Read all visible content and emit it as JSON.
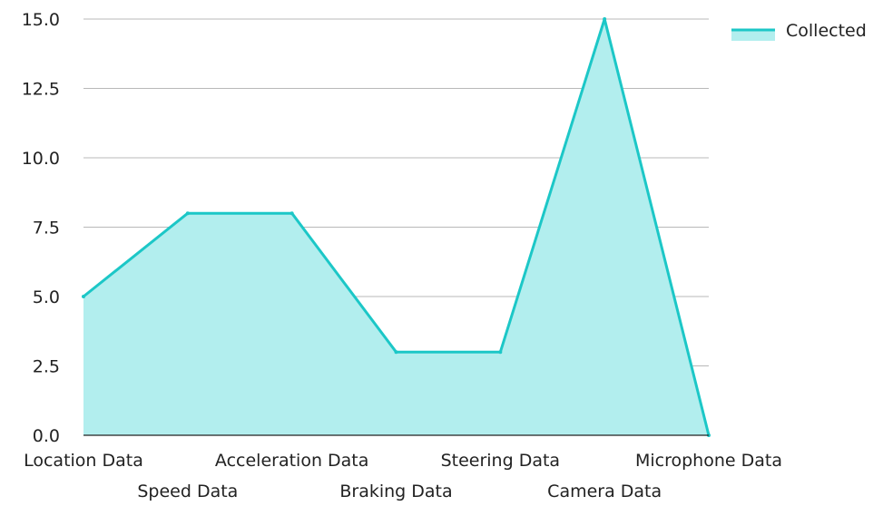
{
  "chart_data": {
    "type": "area",
    "categories": [
      "Location Data",
      "Speed Data",
      "Acceleration Data",
      "Braking Data",
      "Steering Data",
      "Camera Data",
      "Microphone Data"
    ],
    "series": [
      {
        "name": "Collected",
        "values": [
          5,
          8,
          8,
          3,
          3,
          15,
          0
        ]
      }
    ],
    "y_ticks": [
      "0.0",
      "2.5",
      "5.0",
      "7.5",
      "10.0",
      "12.5",
      "15.0"
    ],
    "ylim": [
      0,
      15
    ],
    "grid": true,
    "legend": "top-right",
    "colors": {
      "line": "#1cc7c7",
      "fill": "#b2eeee",
      "grid": "#b8b8b8",
      "text": "#222222"
    }
  }
}
